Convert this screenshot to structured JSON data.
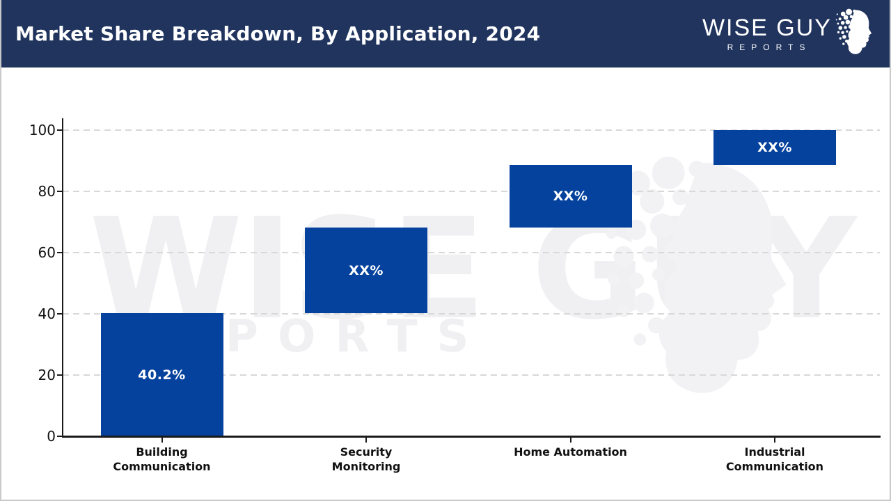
{
  "header": {
    "title": "Market Share Breakdown, By Application, 2024",
    "logo": {
      "line1": "WISE GUY",
      "line2": "REPORTS"
    }
  },
  "watermark": {
    "line1": "WISE GUY",
    "line2": "REPORTS"
  },
  "colors": {
    "header_bg": "#20345e",
    "bar": "#04429d",
    "grid": "#d8d8d8",
    "axis": "#1a1a1a",
    "watermark": "#f0f0f2",
    "label_on_bar": "#ffffff",
    "page_border": "#c9c9c9"
  },
  "chart_data": {
    "type": "bar",
    "subtype": "waterfall",
    "title": "Market Share Breakdown, By Application, 2024",
    "categories": [
      "Building Communication",
      "Security Monitoring",
      "Home Automation",
      "Industrial Communication"
    ],
    "category_lines": [
      [
        "Building",
        "Communication"
      ],
      [
        "Security",
        "Monitoring"
      ],
      [
        "Home Automation"
      ],
      [
        "Industrial",
        "Communication"
      ]
    ],
    "segments": [
      {
        "start": 0,
        "end": 40.2,
        "label": "40.2%"
      },
      {
        "start": 40.2,
        "end": 68.2,
        "label": "XX%"
      },
      {
        "start": 68.2,
        "end": 88.6,
        "label": "XX%"
      },
      {
        "start": 88.6,
        "end": 100,
        "label": "XX%"
      }
    ],
    "yticks": [
      0,
      20,
      40,
      60,
      80,
      100
    ],
    "ylim": [
      0,
      100
    ],
    "xlabel": "",
    "ylabel": "",
    "grid": "horizontal-dashed",
    "legend": "none",
    "bar_color": "#04429d"
  }
}
